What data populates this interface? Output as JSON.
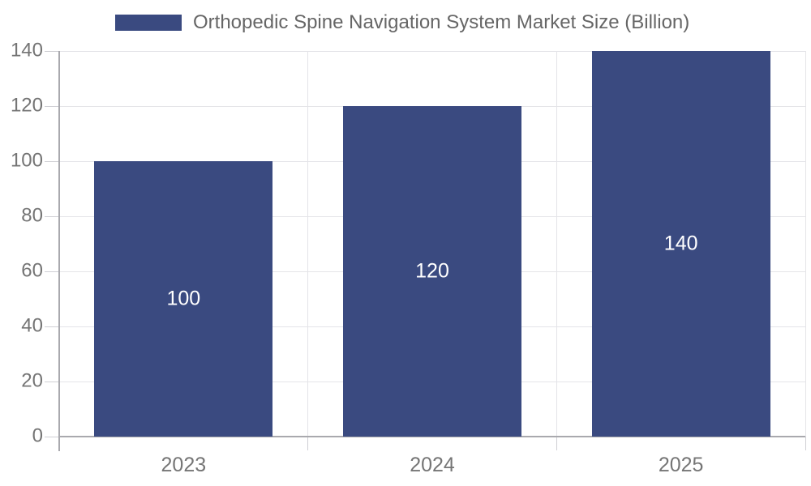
{
  "chart_data": {
    "type": "bar",
    "title": "Orthopedic Spine Navigation System Market Size (Billion)",
    "categories": [
      "2023",
      "2024",
      "2025"
    ],
    "series": [
      {
        "name": "Orthopedic Spine Navigation System Market Size (Billion)",
        "values": [
          100,
          120,
          140
        ]
      }
    ],
    "value_labels": [
      "100",
      "120",
      "140"
    ],
    "ytick_labels": [
      "0",
      "20",
      "40",
      "60",
      "80",
      "100",
      "120",
      "140"
    ],
    "yticks": [
      0,
      20,
      40,
      60,
      80,
      100,
      120,
      140
    ],
    "ylim": [
      0,
      140
    ],
    "xlabel": "",
    "ylabel": "",
    "grid": true,
    "legend_position": "top-left",
    "colors": {
      "bar": "#3a4a80",
      "bar_value_label": "#ffffff",
      "gridline": "#e4e4e8",
      "axis_line": "#a9a9ae",
      "tick_line": "#cfcfd4",
      "axis_text": "#757575",
      "legend_text": "#666666"
    }
  }
}
